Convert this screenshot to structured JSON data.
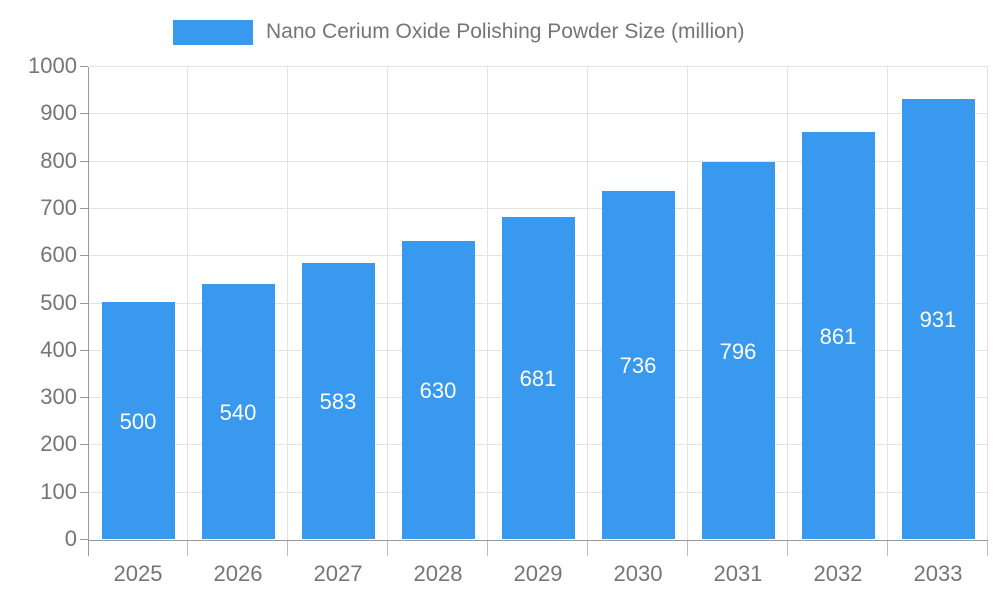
{
  "legend": {
    "label": "Nano Cerium Oxide Polishing Powder Size (million)"
  },
  "chart_data": {
    "type": "bar",
    "title": "Nano Cerium Oxide Polishing Powder Size (million)",
    "categories": [
      "2025",
      "2026",
      "2027",
      "2028",
      "2029",
      "2030",
      "2031",
      "2032",
      "2033"
    ],
    "values": [
      500,
      540,
      583,
      630,
      681,
      736,
      796,
      861,
      931
    ],
    "xlabel": "",
    "ylabel": "",
    "ylim": [
      0,
      1000
    ],
    "ytick_step": 100,
    "grid": true,
    "legend_position": "top",
    "colors": {
      "bar": "#3899ee",
      "bar_label_text": "#ffffff",
      "axis_line": "#999999",
      "gridline": "#e3e3e3",
      "axis_text": "#757575"
    }
  }
}
